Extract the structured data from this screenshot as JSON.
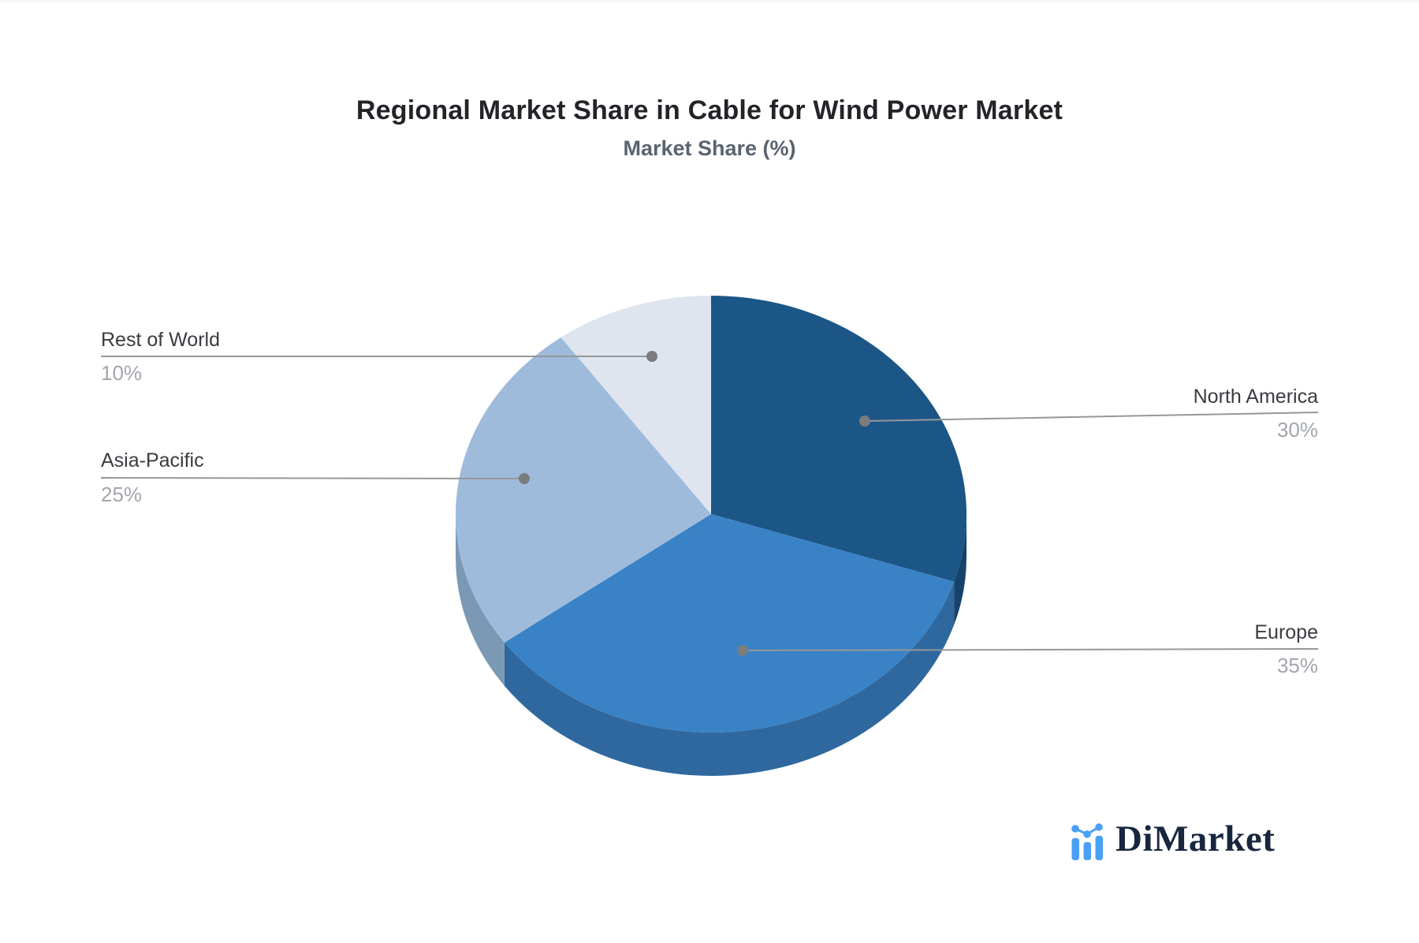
{
  "chart_data": {
    "type": "pie",
    "title": "Regional Market Share in Cable for Wind Power Market",
    "subtitle": "Market Share (%)",
    "unit": "%",
    "effect": "3d",
    "direction": "clockwise",
    "start_angle_deg": 0,
    "legend_position": "callout-labels",
    "segments": [
      {
        "label": "North America",
        "value": 30,
        "percent_label": "30%",
        "color": "#1b5687",
        "side_color": "#15436b",
        "callout_side": "right"
      },
      {
        "label": "Europe",
        "value": 35,
        "percent_label": "35%",
        "color": "#3a82c6",
        "side_color": "#2e689e",
        "callout_side": "right"
      },
      {
        "label": "Asia-Pacific",
        "value": 25,
        "percent_label": "25%",
        "color": "#9fbbdc",
        "side_color": "#7b98b4",
        "callout_side": "left"
      },
      {
        "label": "Rest of World",
        "value": 10,
        "percent_label": "10%",
        "color": "#dee5ef",
        "side_color": "#cbd5e3",
        "callout_side": "left"
      }
    ],
    "callout_style": {
      "line_color": "#959799",
      "dot_color": "#7a7c7e",
      "label_color": "#393c40",
      "percent_color": "#a2a6ab"
    }
  },
  "branding": {
    "logo_text": "DiMarket",
    "logo_icon": "bar-chart-trend-icon",
    "logo_icon_color": "#49a0f4",
    "logo_text_color": "#17273e"
  }
}
